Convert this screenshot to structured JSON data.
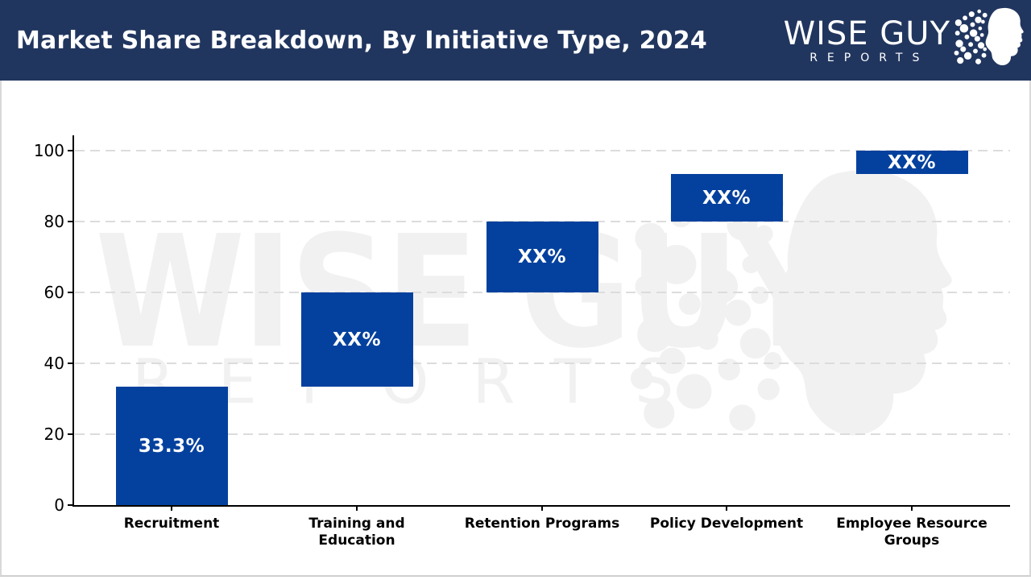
{
  "header": {
    "title": "Market Share Breakdown, By Initiative Type, 2024",
    "logo": {
      "line1": "WISE GUY",
      "line2": "REPORTS"
    }
  },
  "watermark": {
    "line1": "WISE GUY",
    "line2": "REPORTS"
  },
  "chart_data": {
    "type": "bar",
    "subtype": "waterfall",
    "title": "Market Share Breakdown, By Initiative Type, 2024",
    "categories": [
      "Recruitment",
      "Training and Education",
      "Retention Programs",
      "Policy Development",
      "Employee Resource Groups"
    ],
    "category_label_lines": [
      [
        "Recruitment"
      ],
      [
        "Training and",
        "Education"
      ],
      [
        "Retention Programs"
      ],
      [
        "Policy Development"
      ],
      [
        "Employee Resource",
        "Groups"
      ]
    ],
    "segments": [
      {
        "category": "Recruitment",
        "start": 0,
        "end": 33.3,
        "label": "33.3%"
      },
      {
        "category": "Training and Education",
        "start": 33.3,
        "end": 60,
        "label": "XX%"
      },
      {
        "category": "Retention Programs",
        "start": 60,
        "end": 80,
        "label": "XX%"
      },
      {
        "category": "Policy Development",
        "start": 80,
        "end": 93.3,
        "label": "XX%"
      },
      {
        "category": "Employee Resource Groups",
        "start": 93.3,
        "end": 100,
        "label": "XX%"
      }
    ],
    "yticks": [
      0,
      20,
      40,
      60,
      80,
      100
    ],
    "ylim": [
      0,
      104
    ],
    "xlabel": "",
    "ylabel": "",
    "grid": "horizontal-dashed",
    "legend": "none",
    "colors": {
      "bar": "#04419e",
      "bar_label": "#ffffff",
      "grid": "#dcdcdc",
      "axis": "#000000",
      "header_bg": "#21365f",
      "watermark": "#f1f1f1"
    }
  }
}
